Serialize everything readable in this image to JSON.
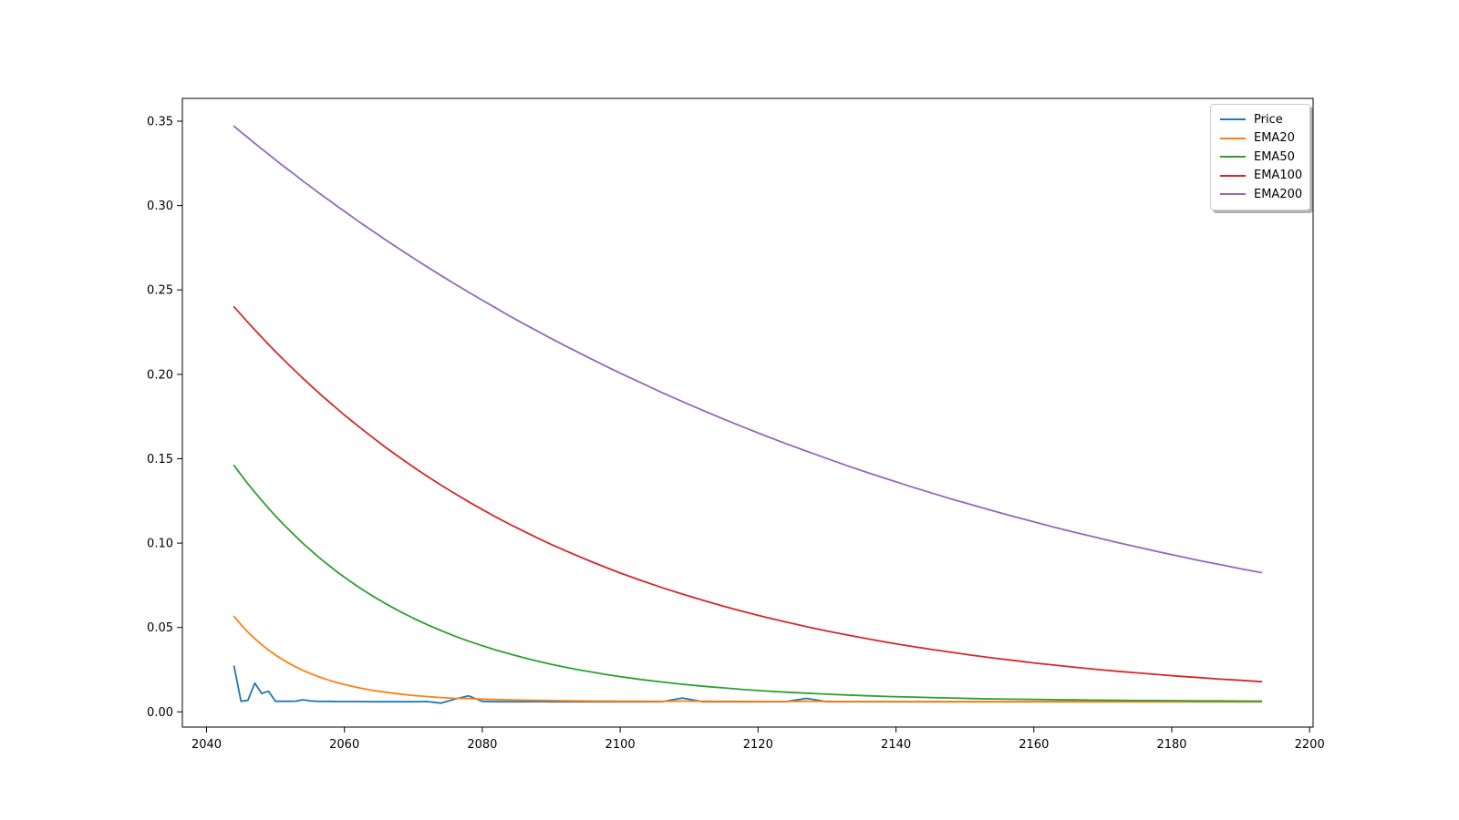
{
  "chart_data": {
    "type": "line",
    "title": "",
    "xlabel": "",
    "ylabel": "",
    "grid": false,
    "legend_position": "upper right",
    "xlim": [
      2036.5,
      2200.5
    ],
    "ylim": [
      -0.009,
      0.3635
    ],
    "x_ticks": [
      2040,
      2060,
      2080,
      2100,
      2120,
      2140,
      2160,
      2180,
      2200
    ],
    "x_tick_labels": [
      "2040",
      "2060",
      "2080",
      "2100",
      "2120",
      "2140",
      "2160",
      "2180",
      "2200"
    ],
    "y_ticks": [
      0.0,
      0.05,
      0.1,
      0.15,
      0.2,
      0.25,
      0.3,
      0.35
    ],
    "y_tick_labels": [
      "0.00",
      "0.05",
      "0.10",
      "0.15",
      "0.20",
      "0.25",
      "0.30",
      "0.35"
    ],
    "x": [
      2044,
      2045,
      2046,
      2047,
      2048,
      2049,
      2050,
      2051,
      2052,
      2053,
      2054,
      2055,
      2056,
      2057,
      2058,
      2059,
      2060,
      2062,
      2064,
      2066,
      2068,
      2070,
      2072,
      2074,
      2076,
      2078,
      2080,
      2082,
      2084,
      2086,
      2088,
      2090,
      2092,
      2094,
      2096,
      2098,
      2100,
      2103,
      2106,
      2109,
      2112,
      2115,
      2118,
      2121,
      2124,
      2127,
      2130,
      2133,
      2136,
      2139,
      2142,
      2145,
      2148,
      2151,
      2154,
      2157,
      2160,
      2163,
      2166,
      2169,
      2172,
      2175,
      2178,
      2181,
      2184,
      2187,
      2190,
      2193
    ],
    "series": [
      {
        "name": "Price",
        "color": "#1f77b4",
        "values": [
          0.027,
          0.0063,
          0.0068,
          0.017,
          0.0109,
          0.0122,
          0.0063,
          0.0063,
          0.0063,
          0.0064,
          0.0072,
          0.0065,
          0.0063,
          0.0062,
          0.0062,
          0.0061,
          0.0061,
          0.0061,
          0.006,
          0.006,
          0.006,
          0.006,
          0.0061,
          0.0052,
          0.0075,
          0.0095,
          0.0062,
          0.006,
          0.006,
          0.006,
          0.0061,
          0.006,
          0.006,
          0.006,
          0.006,
          0.006,
          0.006,
          0.006,
          0.006,
          0.0082,
          0.006,
          0.006,
          0.006,
          0.006,
          0.006,
          0.008,
          0.006,
          0.006,
          0.006,
          0.006,
          0.006,
          0.006,
          0.006,
          0.006,
          0.006,
          0.006,
          0.006,
          0.006,
          0.006,
          0.006,
          0.006,
          0.006,
          0.006,
          0.006,
          0.006,
          0.006,
          0.006,
          0.006
        ]
      },
      {
        "name": "EMA20",
        "color": "#ff7f0e",
        "values": [
          0.0565,
          0.0517,
          0.0473,
          0.0434,
          0.0398,
          0.0366,
          0.0337,
          0.0311,
          0.0287,
          0.0265,
          0.0246,
          0.0228,
          0.0212,
          0.0198,
          0.0184,
          0.0173,
          0.0162,
          0.0143,
          0.0128,
          0.0116,
          0.0106,
          0.0097,
          0.0091,
          0.0085,
          0.008,
          0.0079,
          0.0076,
          0.0073,
          0.0071,
          0.0069,
          0.0068,
          0.0067,
          0.0066,
          0.0065,
          0.0064,
          0.0064,
          0.0063,
          0.0063,
          0.0062,
          0.0064,
          0.0063,
          0.0062,
          0.0062,
          0.0061,
          0.0061,
          0.0063,
          0.0062,
          0.0061,
          0.0061,
          0.0061,
          0.0061,
          0.006,
          0.006,
          0.006,
          0.006,
          0.006,
          0.006,
          0.006,
          0.006,
          0.006,
          0.006,
          0.006,
          0.006,
          0.006,
          0.006,
          0.006,
          0.006,
          0.006
        ]
      },
      {
        "name": "EMA50",
        "color": "#2ca02c",
        "values": [
          0.146,
          0.1405,
          0.1352,
          0.1302,
          0.1253,
          0.1206,
          0.1161,
          0.1118,
          0.1077,
          0.1037,
          0.0998,
          0.0962,
          0.0926,
          0.0892,
          0.086,
          0.0828,
          0.0798,
          0.0741,
          0.0689,
          0.0641,
          0.0596,
          0.0555,
          0.0517,
          0.0482,
          0.0449,
          0.0419,
          0.0392,
          0.0366,
          0.0343,
          0.0321,
          0.0301,
          0.0282,
          0.0265,
          0.0249,
          0.0235,
          0.0221,
          0.0209,
          0.0192,
          0.0177,
          0.0164,
          0.0152,
          0.0142,
          0.0132,
          0.0124,
          0.0117,
          0.0111,
          0.0105,
          0.01,
          0.0095,
          0.0091,
          0.0088,
          0.0085,
          0.0082,
          0.0079,
          0.0077,
          0.0075,
          0.0074,
          0.0072,
          0.0071,
          0.0069,
          0.0068,
          0.0067,
          0.0067,
          0.0066,
          0.0065,
          0.0065,
          0.0064,
          0.0064
        ]
      },
      {
        "name": "EMA100",
        "color": "#d62728",
        "values": [
          0.24,
          0.2354,
          0.2308,
          0.2264,
          0.222,
          0.2177,
          0.2135,
          0.2094,
          0.2054,
          0.2015,
          0.1976,
          0.1938,
          0.1901,
          0.1864,
          0.1829,
          0.1794,
          0.1759,
          0.1693,
          0.1629,
          0.1567,
          0.1508,
          0.1451,
          0.1397,
          0.1344,
          0.1294,
          0.1245,
          0.1199,
          0.1154,
          0.1111,
          0.107,
          0.1031,
          0.0992,
          0.0956,
          0.0921,
          0.0887,
          0.0855,
          0.0823,
          0.0779,
          0.0737,
          0.0698,
          0.0661,
          0.0626,
          0.0593,
          0.0562,
          0.0533,
          0.0505,
          0.0479,
          0.0455,
          0.0432,
          0.041,
          0.039,
          0.0371,
          0.0353,
          0.0336,
          0.032,
          0.0305,
          0.029,
          0.0277,
          0.0264,
          0.0252,
          0.0241,
          0.0231,
          0.0221,
          0.0211,
          0.0203,
          0.0194,
          0.0187,
          0.0179
        ]
      },
      {
        "name": "EMA200",
        "color": "#9467bd",
        "values": [
          0.347,
          0.3436,
          0.3403,
          0.3369,
          0.3336,
          0.3304,
          0.3271,
          0.3239,
          0.3208,
          0.3177,
          0.3145,
          0.3115,
          0.3084,
          0.3054,
          0.3025,
          0.2995,
          0.2966,
          0.2908,
          0.2852,
          0.2796,
          0.2742,
          0.2689,
          0.2637,
          0.2586,
          0.2536,
          0.2487,
          0.2439,
          0.2392,
          0.2345,
          0.23,
          0.2256,
          0.2212,
          0.217,
          0.2128,
          0.2087,
          0.2047,
          0.2007,
          0.195,
          0.1893,
          0.1839,
          0.1786,
          0.1735,
          0.1685,
          0.1637,
          0.159,
          0.1545,
          0.1501,
          0.1458,
          0.1416,
          0.1376,
          0.1337,
          0.1299,
          0.1262,
          0.1227,
          0.1192,
          0.1158,
          0.1126,
          0.1094,
          0.1063,
          0.1034,
          0.1005,
          0.0977,
          0.0949,
          0.0923,
          0.0897,
          0.0873,
          0.0848,
          0.0825
        ]
      }
    ]
  }
}
